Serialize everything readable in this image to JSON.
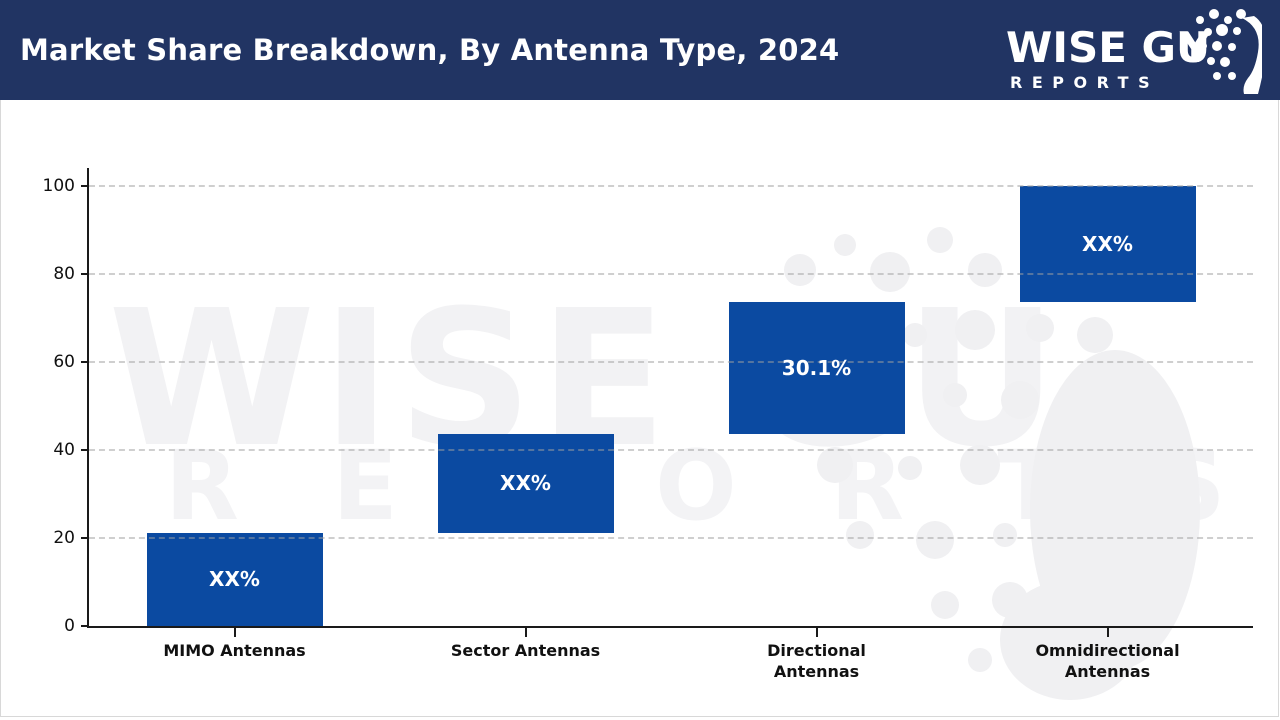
{
  "header": {
    "title": "Market Share Breakdown, By Antenna Type, 2024",
    "logo": {
      "line1": "WISE GUY",
      "line2": "R E P O R T S"
    }
  },
  "watermark": {
    "line1": "WISE GU",
    "line2": "R E P O R T S"
  },
  "colors": {
    "header_bg": "#213463",
    "bar_blue": "#0b4aa1",
    "gridline": "#a0a0a0"
  },
  "chart_data": {
    "type": "bar",
    "variant": "floating-waterfall",
    "title": "Market Share Breakdown, By Antenna Type, 2024",
    "categories": [
      "MIMO Antennas",
      "Sector Antennas",
      "Directional Antennas",
      "Omnidirectional Antennas"
    ],
    "category_lines": [
      [
        "MIMO Antennas"
      ],
      [
        "Sector Antennas"
      ],
      [
        "Directional",
        "Antennas"
      ],
      [
        "Omnidirectional",
        "Antennas"
      ]
    ],
    "bars": [
      {
        "category": "MIMO Antennas",
        "start": 0,
        "end": 21.2,
        "label": "XX%"
      },
      {
        "category": "Sector Antennas",
        "start": 21.2,
        "end": 43.6,
        "label": "XX%"
      },
      {
        "category": "Directional Antennas",
        "start": 43.6,
        "end": 73.7,
        "label": "30.1%"
      },
      {
        "category": "Omnidirectional Antennas",
        "start": 73.7,
        "end": 100,
        "label": "XX%"
      }
    ],
    "xlabel": "",
    "ylabel": "",
    "ylim": [
      0,
      105
    ],
    "yticks": [
      0,
      20,
      40,
      60,
      80,
      100
    ],
    "grid": true,
    "grid_style": "dashed",
    "legend": false,
    "bar_color": "#0b4aa1",
    "bar_label_color": "#ffffff"
  }
}
